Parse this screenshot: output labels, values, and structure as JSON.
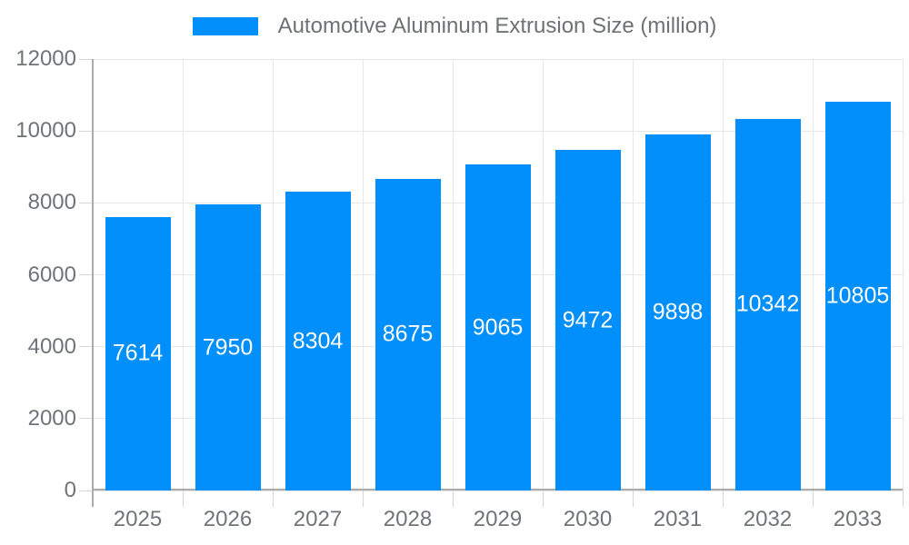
{
  "chart_data": {
    "type": "bar",
    "title": "Automotive Aluminum Extrusion Size (million)",
    "categories": [
      "2025",
      "2026",
      "2027",
      "2028",
      "2029",
      "2030",
      "2031",
      "2032",
      "2033"
    ],
    "values": [
      7614,
      7950,
      8304,
      8675,
      9065,
      9472,
      9898,
      10342,
      10805
    ],
    "series": [
      {
        "name": "Automotive Aluminum Extrusion Size (million)",
        "values": [
          7614,
          7950,
          8304,
          8675,
          9065,
          9472,
          9898,
          10342,
          10805
        ]
      }
    ],
    "xlabel": "",
    "ylabel": "",
    "ylim": [
      0,
      12000
    ],
    "y_ticks": [
      0,
      2000,
      4000,
      6000,
      8000,
      10000,
      12000
    ],
    "grid": true,
    "legend_position": "top",
    "value_labels_position": "middle-of-bar",
    "colors": {
      "bar": "#008FFB",
      "grid": "#e7e7e7",
      "axis_line": "#ababab",
      "tick": "#d6d6d6",
      "axis_label": "#70747a",
      "legend_label": "#6e7175",
      "value_label": "#ffffff",
      "background": "#ffffff"
    }
  }
}
